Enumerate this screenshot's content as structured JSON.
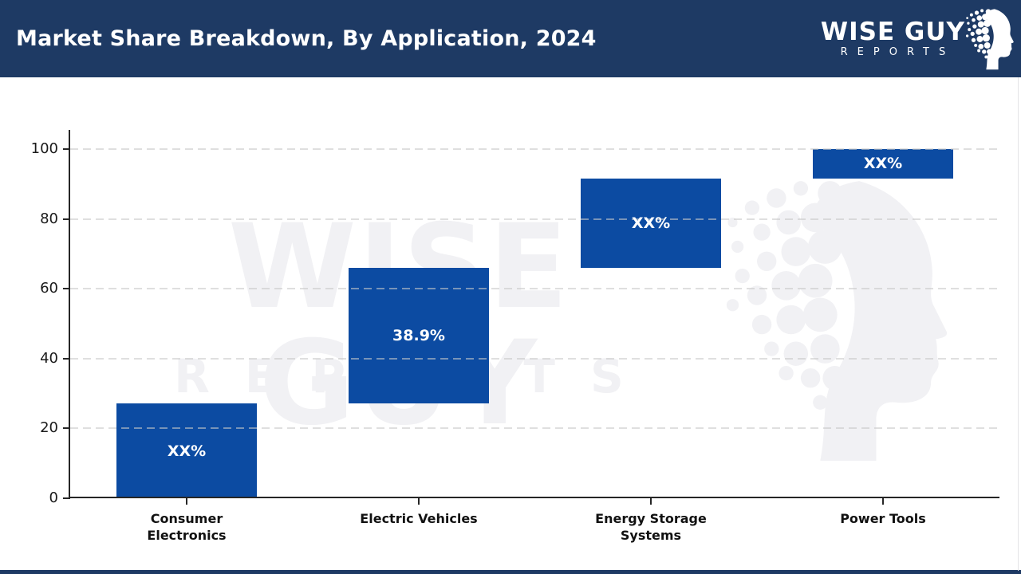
{
  "header": {
    "title": "Market Share Breakdown, By Application, 2024",
    "logo": {
      "brand_top": "WISE GUY",
      "brand_bottom": "REPORTS"
    }
  },
  "watermark": {
    "line1": "WISE GUY",
    "line2": "REPORTS"
  },
  "colors": {
    "header_bg": "#1e3a64",
    "footer_bg": "#1e3a64",
    "bar": "#0c4ba2",
    "bar_label": "#ffffff",
    "axis": "#262626",
    "grid": "#d9d9d9",
    "watermark": "#f1f1f4"
  },
  "chart_data": {
    "type": "bar",
    "subtype": "waterfall-floating-bars",
    "title": "Market Share Breakdown, By Application, 2024",
    "categories": [
      "Consumer Electronics",
      "Electric Vehicles",
      "Energy Storage Systems",
      "Power Tools"
    ],
    "category_lines": [
      [
        "Consumer",
        "Electronics"
      ],
      [
        "Electric Vehicles"
      ],
      [
        "Energy Storage",
        "Systems"
      ],
      [
        "Power Tools"
      ]
    ],
    "segments": [
      {
        "category": "Consumer Electronics",
        "start": 0,
        "end": 27.1,
        "label": "XX%"
      },
      {
        "category": "Electric Vehicles",
        "start": 27.1,
        "end": 66.0,
        "label": "38.9%"
      },
      {
        "category": "Energy Storage Systems",
        "start": 66.0,
        "end": 91.6,
        "label": "XX%"
      },
      {
        "category": "Power Tools",
        "start": 91.6,
        "end": 100.0,
        "label": "XX%"
      }
    ],
    "xlabel": "",
    "ylabel": "",
    "yticks": [
      0,
      20,
      40,
      60,
      80,
      100
    ],
    "ylim": [
      0,
      105
    ],
    "grid": "horizontal-dashed-over-bars",
    "legend": "none"
  }
}
